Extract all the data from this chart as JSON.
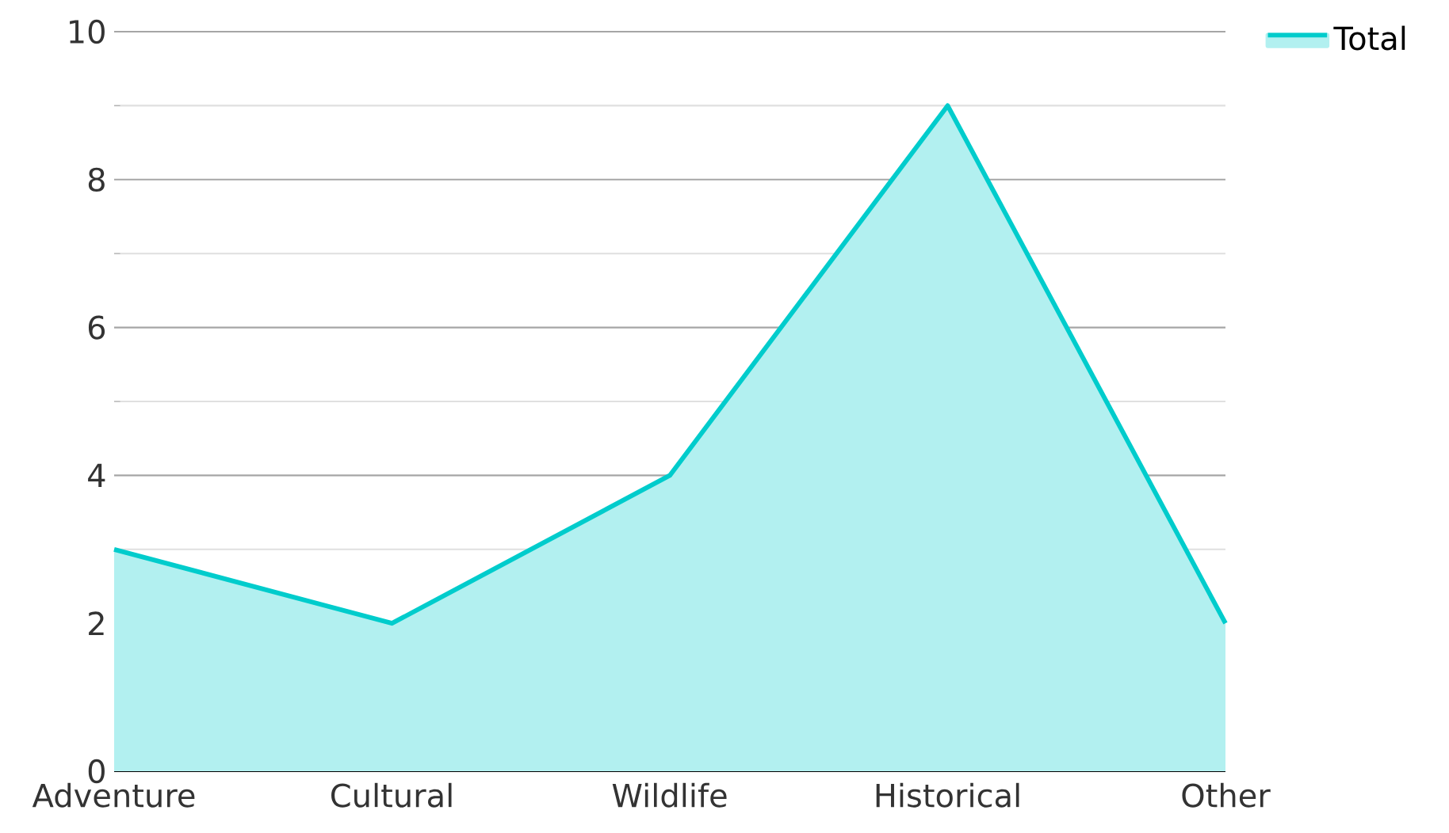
{
  "chart_data": {
    "type": "area",
    "categories": [
      "Adventure",
      "Cultural",
      "Wildlife",
      "Historical",
      "Other"
    ],
    "series": [
      {
        "name": "Total",
        "color": "#00cccc",
        "values": [
          3,
          2,
          4,
          9,
          2
        ]
      }
    ],
    "ylim": [
      0,
      10
    ],
    "yticks": [
      0,
      2,
      4,
      6,
      8,
      10
    ],
    "grid": "y",
    "legend": "top right"
  }
}
